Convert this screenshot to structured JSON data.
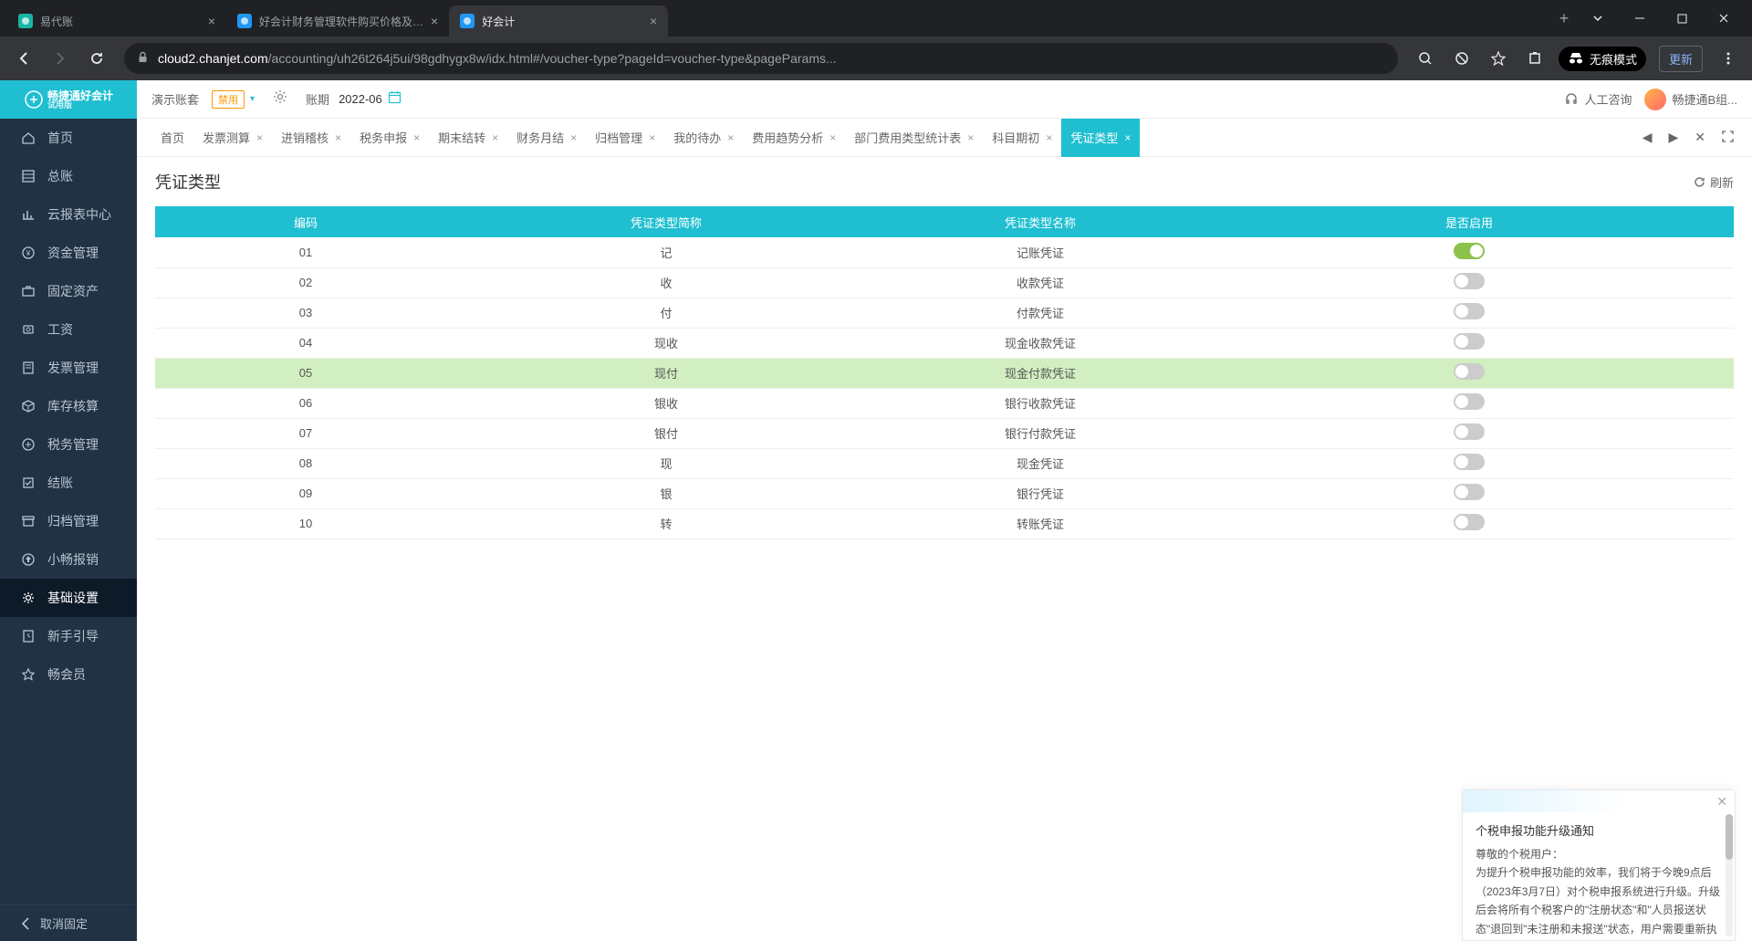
{
  "browser": {
    "tabs": [
      {
        "title": "易代账",
        "active": false,
        "favicon_color": "#19b5a5"
      },
      {
        "title": "好会计财务管理软件购买价格及…",
        "active": false,
        "favicon_color": "#2196f3"
      },
      {
        "title": "好会计",
        "active": true,
        "favicon_color": "#2196f3"
      }
    ],
    "url_domain": "cloud2.chanjet.com",
    "url_path": "/accounting/uh26t264j5ui/98gdhygx8w/idx.html#/voucher-type?pageId=voucher-type&pageParams...",
    "incognito_label": "无痕模式",
    "update_label": "更新"
  },
  "app": {
    "logo_text": "畅捷通好会计",
    "logo_sub": "试用版",
    "sidebar": [
      {
        "label": "首页",
        "icon": "home"
      },
      {
        "label": "总账",
        "icon": "ledger"
      },
      {
        "label": "云报表中心",
        "icon": "chart"
      },
      {
        "label": "资金管理",
        "icon": "money"
      },
      {
        "label": "固定资产",
        "icon": "asset"
      },
      {
        "label": "工资",
        "icon": "salary"
      },
      {
        "label": "发票管理",
        "icon": "invoice"
      },
      {
        "label": "库存核算",
        "icon": "stock"
      },
      {
        "label": "税务管理",
        "icon": "tax"
      },
      {
        "label": "结账",
        "icon": "close"
      },
      {
        "label": "归档管理",
        "icon": "archive"
      },
      {
        "label": "小畅报销",
        "icon": "reimburse"
      },
      {
        "label": "基础设置",
        "icon": "settings",
        "active": true
      },
      {
        "label": "新手引导",
        "icon": "guide"
      },
      {
        "label": "畅会员",
        "icon": "vip"
      }
    ],
    "sidebar_footer": "取消固定",
    "topbar": {
      "account": "演示账套",
      "disabled_tag": "禁用",
      "period_label": "账期",
      "period_value": "2022-06",
      "support": "人工咨询",
      "user": "畅捷通B组..."
    },
    "page_tabs": [
      {
        "label": "首页",
        "closable": false
      },
      {
        "label": "发票测算",
        "closable": true
      },
      {
        "label": "进销稽核",
        "closable": true
      },
      {
        "label": "税务申报",
        "closable": true
      },
      {
        "label": "期末结转",
        "closable": true
      },
      {
        "label": "财务月结",
        "closable": true
      },
      {
        "label": "归档管理",
        "closable": true
      },
      {
        "label": "我的待办",
        "closable": true
      },
      {
        "label": "费用趋势分析",
        "closable": true
      },
      {
        "label": "部门费用类型统计表",
        "closable": true
      },
      {
        "label": "科目期初",
        "closable": true
      },
      {
        "label": "凭证类型",
        "closable": true,
        "active": true
      }
    ],
    "page": {
      "title": "凭证类型",
      "refresh": "刷新",
      "columns": {
        "code": "编码",
        "short": "凭证类型简称",
        "name": "凭证类型名称",
        "enable": "是否启用"
      },
      "rows": [
        {
          "code": "01",
          "short": "记",
          "name": "记账凭证",
          "enabled": true
        },
        {
          "code": "02",
          "short": "收",
          "name": "收款凭证",
          "enabled": false
        },
        {
          "code": "03",
          "short": "付",
          "name": "付款凭证",
          "enabled": false
        },
        {
          "code": "04",
          "short": "现收",
          "name": "现金收款凭证",
          "enabled": false
        },
        {
          "code": "05",
          "short": "现付",
          "name": "现金付款凭证",
          "enabled": false,
          "highlighted": true
        },
        {
          "code": "06",
          "short": "银收",
          "name": "银行收款凭证",
          "enabled": false
        },
        {
          "code": "07",
          "short": "银付",
          "name": "银行付款凭证",
          "enabled": false
        },
        {
          "code": "08",
          "short": "现",
          "name": "现金凭证",
          "enabled": false
        },
        {
          "code": "09",
          "short": "银",
          "name": "银行凭证",
          "enabled": false
        },
        {
          "code": "10",
          "short": "转",
          "name": "转账凭证",
          "enabled": false
        }
      ]
    },
    "notification": {
      "title": "个税申报功能升级通知",
      "salutation": "尊敬的个税用户：",
      "body": "为提升个税申报功能的效率，我们将于今晚9点后（2023年3月7日）对个税申报系统进行升级。升级后会将所有个税客户的\"注册状态\"和\"人员报送状态\"退回到\"未注册和未报送\"状态，用户需要重新执行一次\"注册信息和人员报送\"成功后才"
    }
  },
  "colors": {
    "primary": "#1fbfd1",
    "sidebar_bg": "#213245",
    "highlight_row": "#d2efc1",
    "toggle_on": "#8bc34a"
  }
}
